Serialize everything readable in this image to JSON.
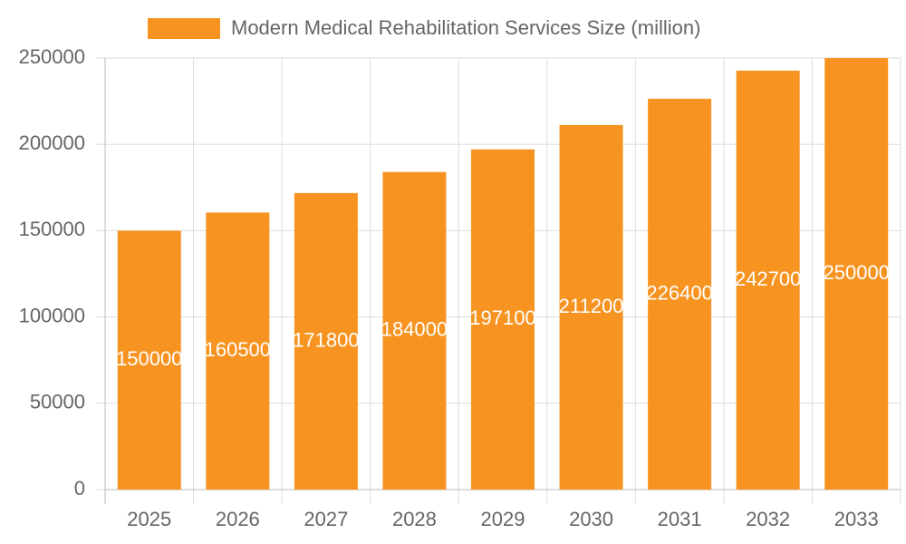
{
  "chart_data": {
    "type": "bar",
    "categories": [
      "2025",
      "2026",
      "2027",
      "2028",
      "2029",
      "2030",
      "2031",
      "2032",
      "2033"
    ],
    "series": [
      {
        "name": "Modern Medical Rehabilitation Services Size (million)",
        "color": "#f79421",
        "values": [
          150000,
          160500,
          171800,
          184000,
          197100,
          211200,
          226400,
          242700,
          250000
        ]
      }
    ],
    "ylim": [
      0,
      250000
    ],
    "yticks": [
      0,
      50000,
      100000,
      150000,
      200000,
      250000
    ],
    "grid": true,
    "legend": "top"
  }
}
